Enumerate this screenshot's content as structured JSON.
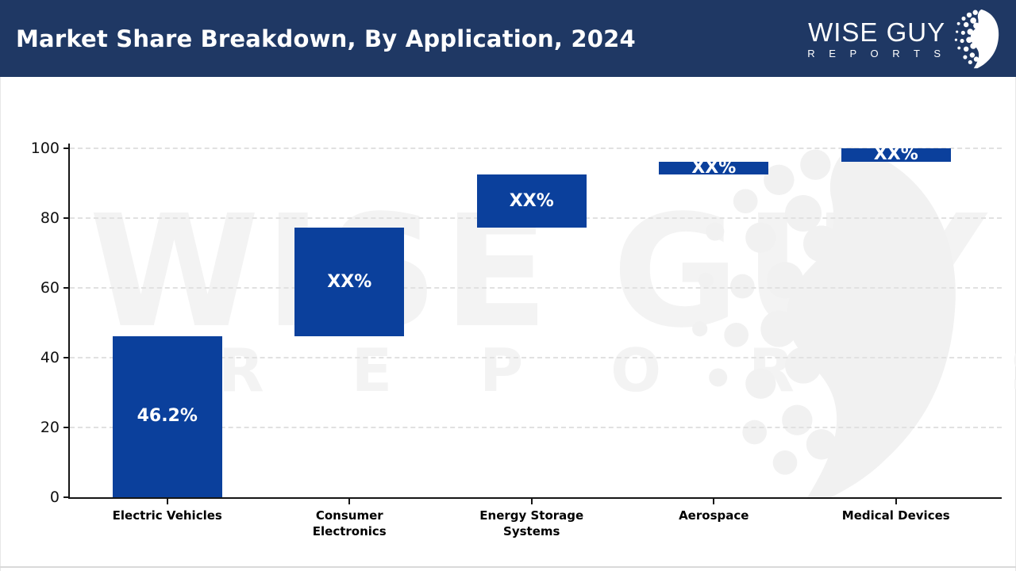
{
  "header": {
    "title": "Market Share Breakdown, By Application, 2024",
    "logo": {
      "line1": "WISE GUY",
      "line2": "R E P O R T S"
    }
  },
  "watermark": {
    "line1": "WISE GUY",
    "line2": "R E P O R T S"
  },
  "chart_data": {
    "type": "bar",
    "subtype": "waterfall",
    "title": "Market Share Breakdown, By Application, 2024",
    "categories": [
      "Electric Vehicles",
      "Consumer\nElectronics",
      "Energy Storage\nSystems",
      "Aerospace",
      "Medical Devices"
    ],
    "segments": [
      {
        "category": "Electric Vehicles",
        "start": 0,
        "end": 46.2,
        "label": "46.2%"
      },
      {
        "category": "Consumer Electronics",
        "start": 46.2,
        "end": 77.2,
        "label": "XX%"
      },
      {
        "category": "Energy Storage Systems",
        "start": 77.2,
        "end": 92.4,
        "label": "XX%"
      },
      {
        "category": "Aerospace",
        "start": 92.4,
        "end": 96.2,
        "label": "XX%"
      },
      {
        "category": "Medical Devices",
        "start": 96.2,
        "end": 100,
        "label": "XX%"
      }
    ],
    "ylim": [
      0,
      100
    ],
    "yticks": [
      0,
      20,
      40,
      60,
      80,
      100
    ],
    "grid": "horizontal-dashed",
    "legend": "none",
    "bar_color": "#0b409c",
    "label_color": "#ffffff"
  },
  "colors": {
    "header_bg": "#1f3864",
    "axis": "#151515",
    "gridline": "#e1e1e1",
    "watermark": "#f3f3f3"
  }
}
